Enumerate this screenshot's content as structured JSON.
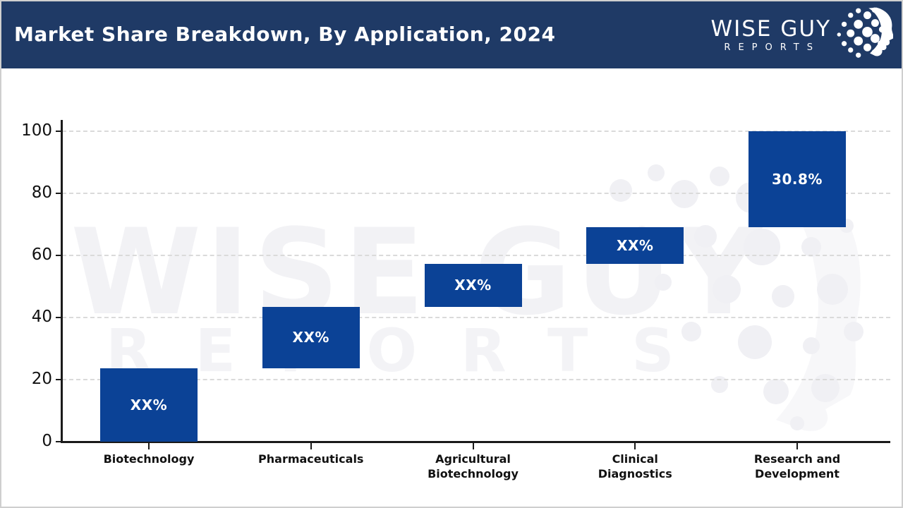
{
  "header": {
    "title": "Market Share Breakdown, By Application, 2024",
    "logo": {
      "line1": "WISE GUY",
      "line2": "REPORTS"
    }
  },
  "watermark": {
    "line1": "WISE GUY",
    "line2": "REPORTS"
  },
  "colors": {
    "header_bg": "#1f3a66",
    "bar": "#0b4296",
    "bar_label": "#ffffff",
    "grid": "#dadada",
    "axis": "#1a1a1a",
    "watermark": "#f2f2f5"
  },
  "chart_data": {
    "type": "bar",
    "subtype": "waterfall",
    "title": "Market Share Breakdown, By Application, 2024",
    "xlabel": "",
    "ylabel": "",
    "ylim": [
      0,
      104
    ],
    "grid": "horizontal-dashed",
    "legend": false,
    "yticks": [
      0,
      20,
      40,
      60,
      80,
      100
    ],
    "categories": [
      "Biotechnology",
      "Pharmaceuticals",
      "Agricultural Biotechnology",
      "Clinical Diagnostics",
      "Research and Development"
    ],
    "values": [
      23.7,
      19.7,
      13.9,
      11.9,
      30.8
    ],
    "bars": [
      {
        "category_lines": [
          "Biotechnology"
        ],
        "start": 0,
        "end": 23.7,
        "label": "XX%"
      },
      {
        "category_lines": [
          "Pharmaceuticals"
        ],
        "start": 23.7,
        "end": 43.4,
        "label": "XX%"
      },
      {
        "category_lines": [
          "Agricultural",
          "Biotechnology"
        ],
        "start": 43.4,
        "end": 57.3,
        "label": "XX%"
      },
      {
        "category_lines": [
          "Clinical",
          "Diagnostics"
        ],
        "start": 57.3,
        "end": 69.2,
        "label": "XX%"
      },
      {
        "category_lines": [
          "Research and",
          "Development"
        ],
        "start": 69.2,
        "end": 100,
        "label": "30.8%"
      }
    ]
  }
}
